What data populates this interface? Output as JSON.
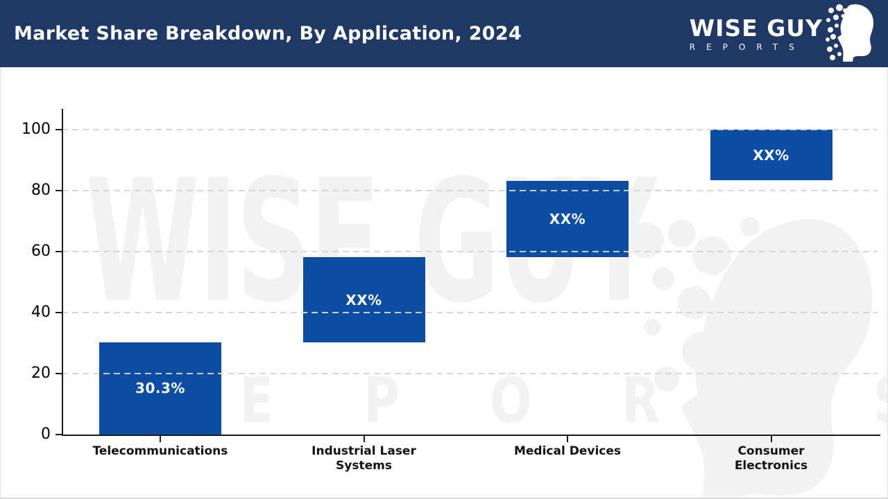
{
  "header": {
    "title": "Market Share Breakdown, By Application, 2024",
    "logo": {
      "line1": "WISE GUY",
      "line2": "REPORTS"
    }
  },
  "watermark": {
    "line1": "WISE GUY",
    "line2": "R E P O R T S"
  },
  "colors": {
    "header_bg": "#1f3864",
    "bar": "#0b4da2",
    "bar_label": "#ffffff",
    "gridline": "#d6d6d6",
    "axis": "#1a1a1a",
    "watermark": "#f2f2f2"
  },
  "chart_data": {
    "type": "bar",
    "subtype": "waterfall-segments",
    "title": "Market Share Breakdown, By Application, 2024",
    "xlabel": "",
    "ylabel": "",
    "ylim": [
      0,
      100
    ],
    "yticks": [
      0,
      20,
      40,
      60,
      80,
      100
    ],
    "grid": "horizontal-dashed",
    "legend": "none",
    "categories": [
      "Telecommunications",
      "Industrial Laser\nSystems",
      "Medical Devices",
      "Consumer\nElectronics"
    ],
    "segments": [
      {
        "category": "Telecommunications",
        "start": 0,
        "end": 30.3,
        "label": "30.3%"
      },
      {
        "category": "Industrial Laser Systems",
        "start": 30.3,
        "end": 58.1,
        "label": "XX%"
      },
      {
        "category": "Medical Devices",
        "start": 58.1,
        "end": 83.2,
        "label": "XX%"
      },
      {
        "category": "Consumer Electronics",
        "start": 83.4,
        "end": 100,
        "label": "XX%"
      }
    ]
  }
}
